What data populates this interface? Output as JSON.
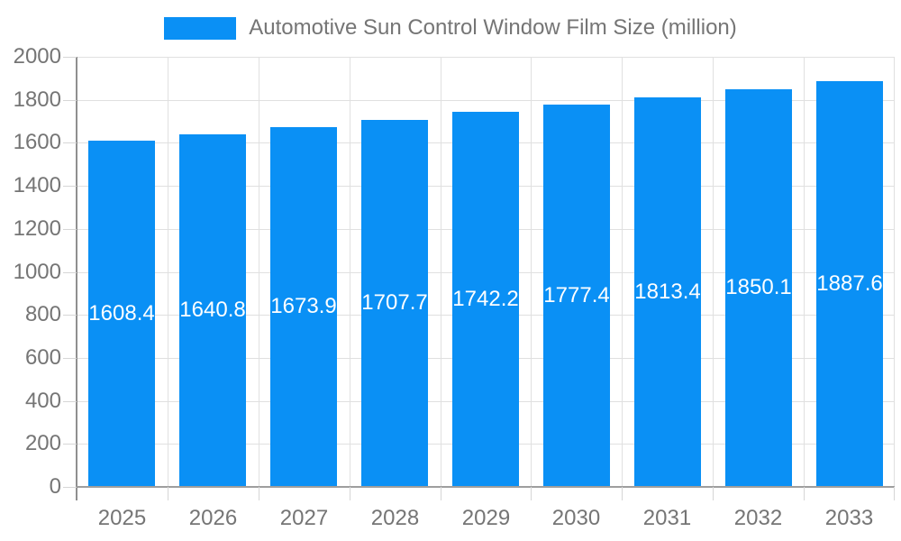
{
  "legend": {
    "label": "Automotive Sun Control Window Film Size (million)"
  },
  "chart_data": {
    "type": "bar",
    "title": "Automotive Sun Control Window Film Size (million)",
    "categories": [
      "2025",
      "2026",
      "2027",
      "2028",
      "2029",
      "2030",
      "2031",
      "2032",
      "2033"
    ],
    "series": [
      {
        "name": "Automotive Sun Control Window Film Size (million)",
        "values": [
          1608.4,
          1640.8,
          1673.9,
          1707.7,
          1742.2,
          1777.4,
          1813.4,
          1850.1,
          1887.6
        ]
      }
    ],
    "data_labels": [
      "1608.4",
      "1640.8",
      "1673.9",
      "1707.7",
      "1742.2",
      "1777.4",
      "1813.4",
      "1850.1",
      "1887.6"
    ],
    "xlabel": "",
    "ylabel": "",
    "ylim": [
      0,
      2000
    ],
    "ytick_step": 200,
    "yticks": [
      "0",
      "200",
      "400",
      "600",
      "800",
      "1000",
      "1200",
      "1400",
      "1600",
      "1800",
      "2000"
    ],
    "grid": true,
    "legend_position": "top",
    "colors": {
      "bar": "#0a90f5",
      "bar_value_label": "#ffffff",
      "axis_text": "#757575",
      "legend_text": "#757575",
      "gridline": "#e0e0e0",
      "axis_line": "#9e9e9e",
      "tick": "#d6d6d6",
      "background": "#ffffff"
    }
  }
}
